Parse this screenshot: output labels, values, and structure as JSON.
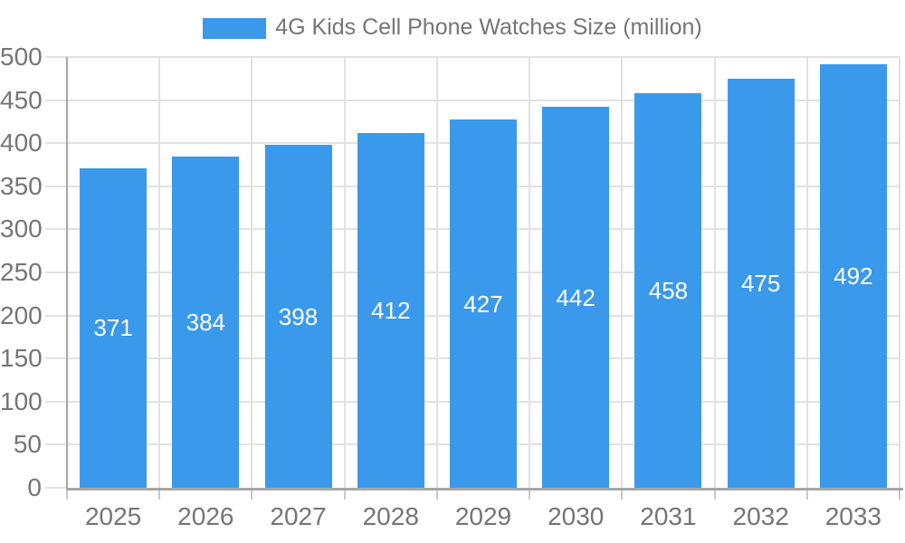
{
  "colors": {
    "bar": "#3B99EC",
    "grid": "#E2E2E2",
    "axis_line": "#A6A6A6",
    "x_tick": "#C9C9C9",
    "y_tick": "#E2E2E2",
    "label_text": "#757575",
    "value_text": "#FFFFFF",
    "background": "#FFFFFF"
  },
  "legend": {
    "label": "4G Kids Cell Phone Watches Size (million)"
  },
  "chart_data": {
    "type": "bar",
    "title": "4G Kids Cell Phone Watches Size (million)",
    "categories": [
      "2025",
      "2026",
      "2027",
      "2028",
      "2029",
      "2030",
      "2031",
      "2032",
      "2033"
    ],
    "values": [
      371,
      384,
      398,
      412,
      427,
      442,
      458,
      475,
      492
    ],
    "series": [
      {
        "name": "4G Kids Cell Phone Watches Size (million)",
        "values": [
          371,
          384,
          398,
          412,
          427,
          442,
          458,
          475,
          492
        ]
      }
    ],
    "xlabel": "",
    "ylabel": "",
    "ylim": [
      0,
      500
    ],
    "yticks": [
      0,
      50,
      100,
      150,
      200,
      250,
      300,
      350,
      400,
      450,
      500
    ],
    "grid": true,
    "legend_position": "top-center",
    "value_label_position": "inside-center"
  }
}
